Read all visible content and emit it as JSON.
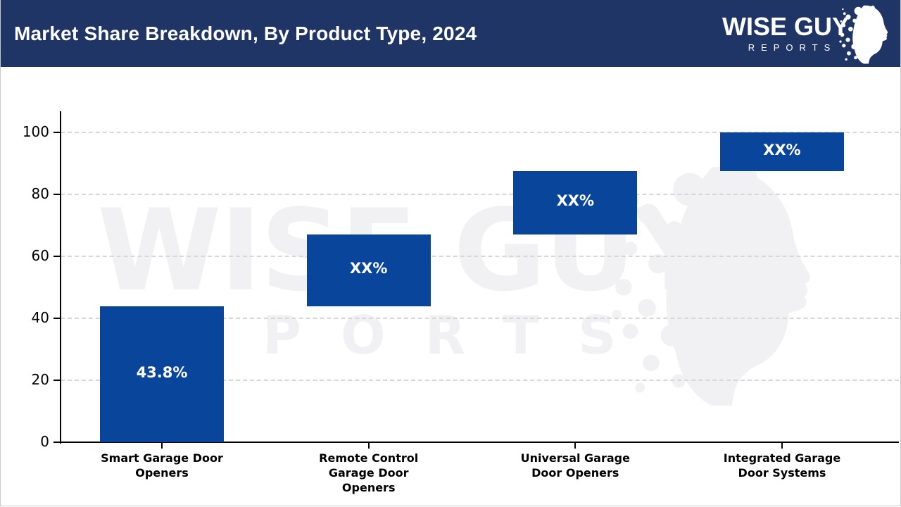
{
  "header": {
    "title": "Market Share Breakdown, By Product Type, 2024",
    "bg_color": "#1f3566",
    "logo": {
      "name": "WISE GUY",
      "sub": "REPORTS"
    }
  },
  "watermark": {
    "line1": "WISE GUY",
    "line2": "REPORTS"
  },
  "chart_data": {
    "type": "bar",
    "subtype": "waterfall",
    "title": "Market Share Breakdown, By Product Type, 2024",
    "categories": [
      "Smart Garage Door\nOpeners",
      "Remote Control\nGarage Door\nOpeners",
      "Universal Garage\nDoor Openers",
      "Integrated Garage\nDoor Systems"
    ],
    "segments": [
      {
        "category": "Smart Garage Door Openers",
        "start": 0,
        "end": 43.8,
        "label": "43.8%"
      },
      {
        "category": "Remote Control Garage Door Openers",
        "start": 43.8,
        "end": 67,
        "label": "XX%"
      },
      {
        "category": "Universal Garage Door Openers",
        "start": 67,
        "end": 87.5,
        "label": "XX%"
      },
      {
        "category": "Integrated Garage Door Systems",
        "start": 87.5,
        "end": 100,
        "label": "XX%"
      }
    ],
    "xlabel": "",
    "ylabel": "",
    "yticks": [
      0,
      20,
      40,
      60,
      80,
      100
    ],
    "ylim": [
      0,
      107
    ],
    "grid": "horizontal-dashed",
    "legend": "none",
    "bar_color": "#0a459c",
    "bar_label_color": "#ffffff",
    "axis_color": "#000000",
    "grid_color": "#d7d7d7"
  }
}
